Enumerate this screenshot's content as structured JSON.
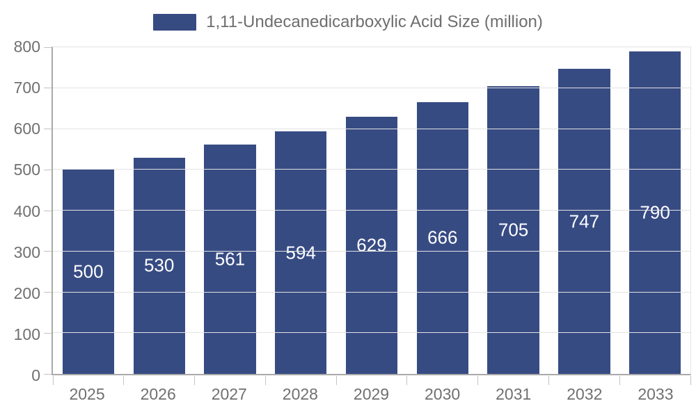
{
  "chart_data": {
    "type": "bar",
    "title": "",
    "legend": {
      "label": "1,11-Undecanedicarboxylic Acid Size (million)",
      "position": "top-center"
    },
    "categories": [
      "2025",
      "2026",
      "2027",
      "2028",
      "2029",
      "2030",
      "2031",
      "2032",
      "2033"
    ],
    "values": [
      500,
      530,
      561,
      594,
      629,
      666,
      705,
      747,
      790
    ],
    "xlabel": "",
    "ylabel": "",
    "ylim": [
      0,
      800
    ],
    "yticks": [
      0,
      100,
      200,
      300,
      400,
      500,
      600,
      700,
      800
    ],
    "grid": true,
    "value_labels_shown": true,
    "colors": {
      "bar": "#374b83",
      "grid": "#e3e3e3",
      "axis": "#a9a9a9",
      "tick": "#c2c2c2",
      "tick_label": "#707070",
      "legend_text": "#6e6e6e",
      "value_label": "#ffffff",
      "background": "#ffffff"
    }
  }
}
